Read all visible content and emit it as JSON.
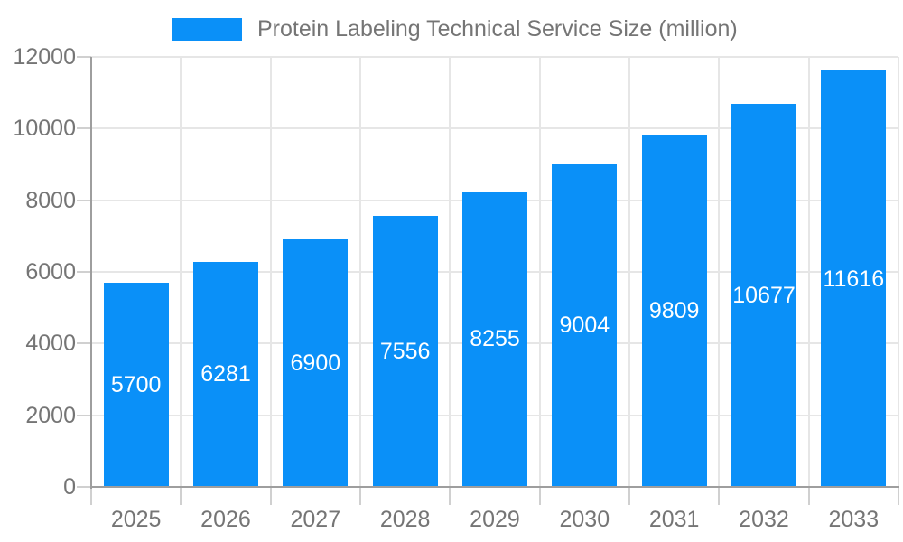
{
  "chart_data": {
    "type": "bar",
    "title": "Protein Labeling Technical Service Size (million)",
    "legend": [
      "Protein Labeling Technical Service Size (million)"
    ],
    "legend_position": "top",
    "categories": [
      "2025",
      "2026",
      "2027",
      "2028",
      "2029",
      "2030",
      "2031",
      "2032",
      "2033"
    ],
    "values": [
      5700,
      6281,
      6900,
      7556,
      8255,
      9004,
      9809,
      10677,
      11616
    ],
    "bar_value_labels": [
      "5700",
      "6281",
      "6900",
      "7556",
      "8255",
      "9004",
      "9809",
      "10677",
      "11616"
    ],
    "xlabel": "",
    "ylabel": "",
    "ylim": [
      0,
      12000
    ],
    "ytick_interval": 2000,
    "ytick_labels": [
      "0",
      "2000",
      "4000",
      "6000",
      "8000",
      "10000",
      "12000"
    ],
    "grid": true,
    "colors": {
      "bar": "#0a90f8",
      "bar_label": "#ffffff",
      "axis": "#9e9e9e",
      "grid": "#e6e6e6",
      "tick": "#d0d0d0",
      "text": "#757575",
      "background": "#ffffff"
    }
  }
}
